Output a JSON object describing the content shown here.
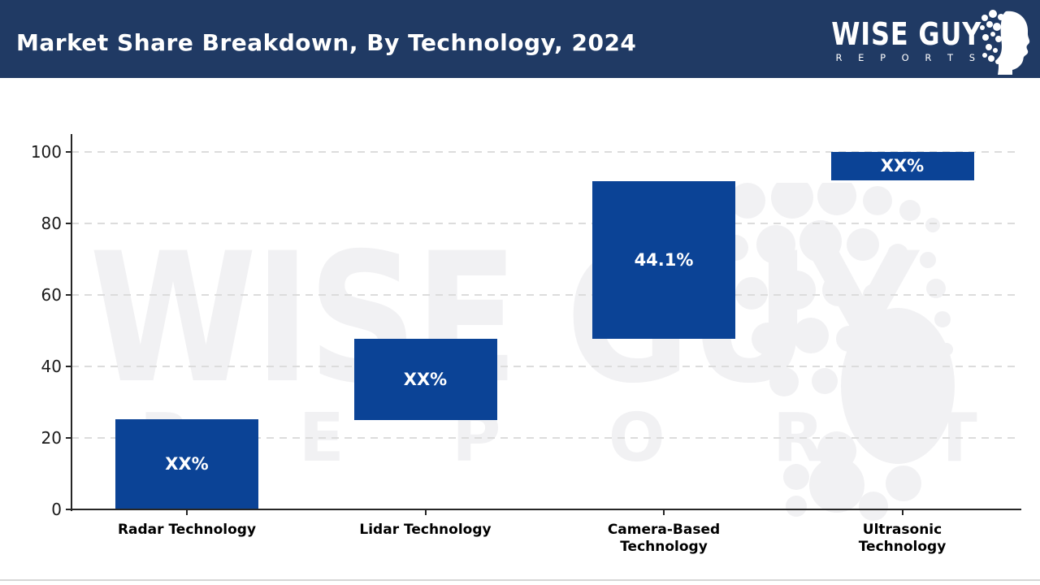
{
  "header": {
    "title": "Market Share Breakdown, By Technology, 2024",
    "logo": {
      "name": "WISE GUY",
      "tagline": "R E P O R T S",
      "icon": "dotted-head-profile-icon"
    }
  },
  "watermark": {
    "name": "WISE GUY",
    "tagline": "R E P O R T S",
    "icon": "dotted-head-profile-watermark-icon"
  },
  "chart_data": {
    "type": "bar",
    "subtype": "waterfall",
    "title": "Market Share Breakdown, By Technology, 2024",
    "xlabel": "",
    "ylabel": "",
    "ylim": [
      0,
      105
    ],
    "yticks": [
      0,
      20,
      40,
      60,
      80,
      100
    ],
    "grid": "horizontal-dashed",
    "legend": "none",
    "categories": [
      "Radar Technology",
      "Lidar Technology",
      "Camera-Based\nTechnology",
      "Ultrasonic\nTechnology"
    ],
    "bars": [
      {
        "category": "Radar Technology",
        "start": 0,
        "end": 25.1,
        "value_label": "XX%"
      },
      {
        "category": "Lidar Technology",
        "start": 24.9,
        "end": 47.7,
        "value_label": "XX%"
      },
      {
        "category": "Camera-Based Technology",
        "start": 47.7,
        "end": 91.8,
        "value_label": "44.1%"
      },
      {
        "category": "Ultrasonic Technology",
        "start": 91.9,
        "end": 100,
        "value_label": "XX%"
      }
    ]
  },
  "colors": {
    "header_bg": "#203a64",
    "bar": "#0b4396",
    "grid": "#dcdcdc",
    "axis": "#262626",
    "watermark": "#f1f1f3",
    "page_bg": "#ffffff",
    "bar_label": "#ffffff"
  }
}
